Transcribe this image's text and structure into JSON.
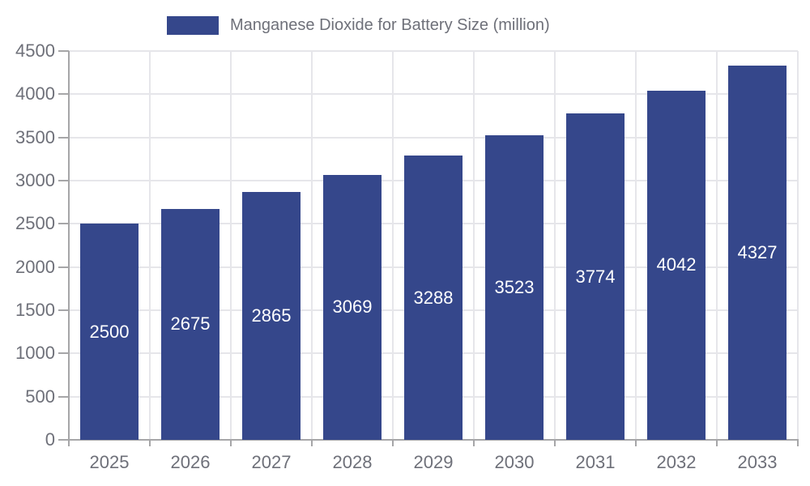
{
  "chart_data": {
    "type": "bar",
    "title": "Manganese Dioxide for Battery Size (million)",
    "legend_position": "top-center",
    "categories": [
      "2025",
      "2026",
      "2027",
      "2028",
      "2029",
      "2030",
      "2031",
      "2032",
      "2033"
    ],
    "values": [
      2500,
      2675,
      2865,
      3069,
      3288,
      3523,
      3774,
      4042,
      4327
    ],
    "bar_value_labels": [
      "2500",
      "2675",
      "2865",
      "3069",
      "3288",
      "3523",
      "3774",
      "4042",
      "4327"
    ],
    "ylim": [
      0,
      4500
    ],
    "yticks": [
      0,
      500,
      1000,
      1500,
      2000,
      2500,
      3000,
      3500,
      4000,
      4500
    ],
    "xlabel": "",
    "ylabel": "",
    "grid": true,
    "colors": {
      "bar": "#35478B",
      "bar_label": "#FFFFFF",
      "grid_line": "#E6E6EA",
      "axis_line": "#A6A6A8",
      "tick_label": "#6E7079",
      "legend_text": "#6E7079",
      "background": "#FFFFFF"
    }
  }
}
